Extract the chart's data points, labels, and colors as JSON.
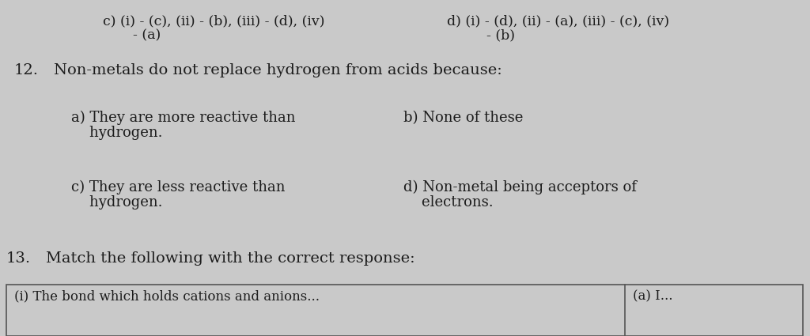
{
  "bg_color": "#c9c9c9",
  "text_color": "#1c1c1c",
  "line1_c": "c) (i) - (c), (ii) - (b), (iii) - (d), (iv)",
  "line2_c": "- (a)",
  "line1_d": "d) (i) - (d), (ii) - (a), (iii) - (c), (iv)",
  "line2_d": "- (b)",
  "q12_num": "12.",
  "q12_text": "Non-metals do not replace hydrogen from acids because:",
  "opt_a_line1": "a) They are more reactive than",
  "opt_a_line2": "    hydrogen.",
  "opt_b": "b) None of these",
  "opt_c_line1": "c) They are less reactive than",
  "opt_c_line2": "    hydrogen.",
  "opt_d_line1": "d) Non-metal being acceptors of",
  "opt_d_line2": "    electrons.",
  "q13_num": "13.",
  "q13_text": "Match the following with the correct response:",
  "table_row1_left": "(i) The bond which holds cations and anions...",
  "table_row1_right": "(a) I...",
  "fontsize_header": 12.5,
  "fontsize_main": 14.0,
  "fontsize_options": 13.0
}
